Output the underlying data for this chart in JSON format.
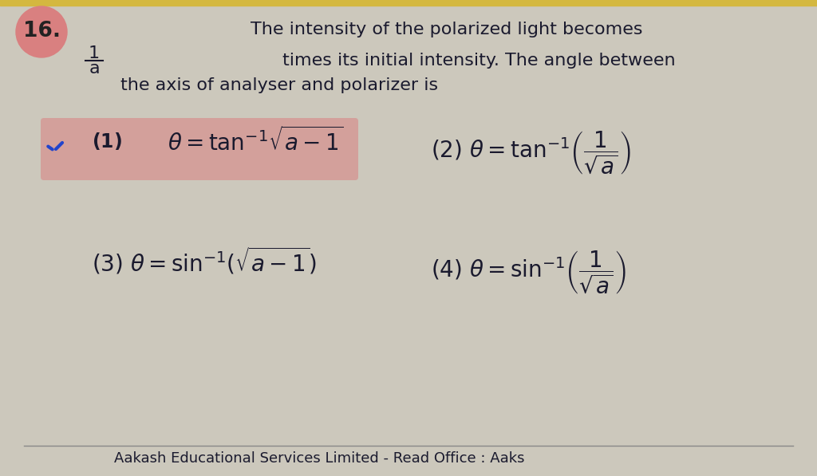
{
  "background_color": "#ccc8bc",
  "text_color": "#1a1a2e",
  "title_number": "16.",
  "title_text": "The intensity of the polarized light becomes",
  "line2_text": "times its initial intensity. The angle between",
  "line3_text": "the axis of analyser and polarizer is",
  "fraction_num": "1",
  "fraction_den": "a",
  "footer_text": "Aakash Educational Services Limited - Read Office : Aaks",
  "circle_color": "#d98080",
  "check_color": "#2244cc",
  "highlight_color": "#d98080",
  "top_bar_color": "#d4b840",
  "figsize": [
    10.24,
    5.97
  ],
  "dpi": 100
}
